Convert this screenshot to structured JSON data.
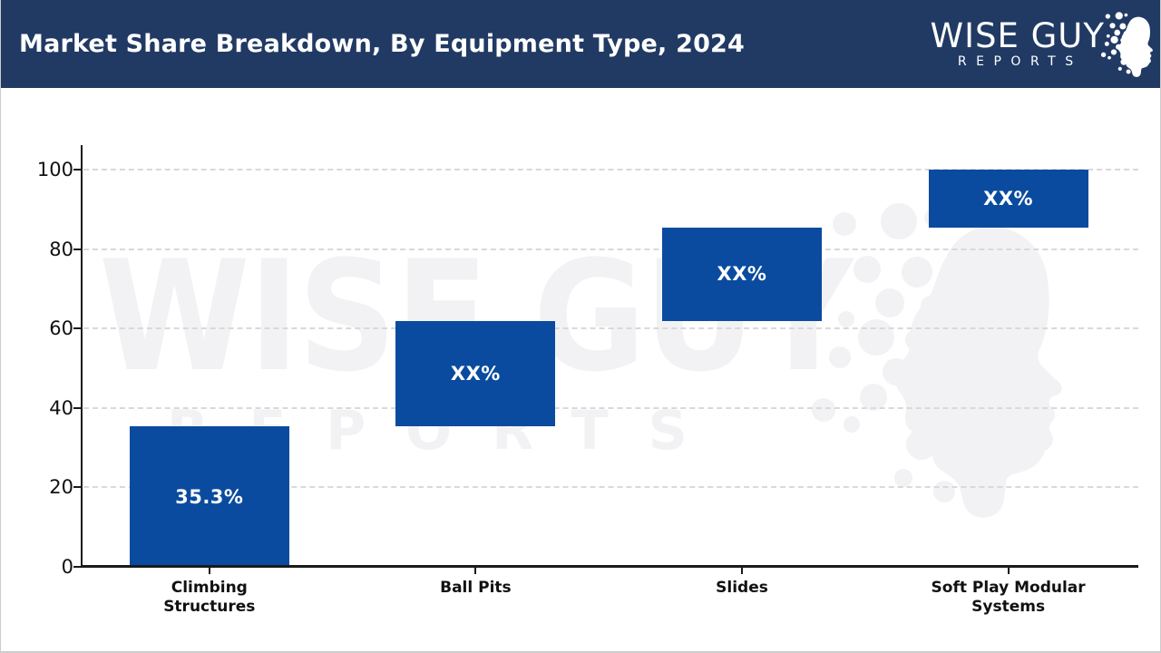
{
  "header": {
    "title": "Market Share Breakdown, By Equipment Type, 2024",
    "logo_primary": "WISE GUY",
    "logo_secondary": "REPORTS"
  },
  "watermark": {
    "primary": "WISE GUY",
    "secondary": "REPORTS"
  },
  "chart_data": {
    "type": "bar",
    "variant": "waterfall",
    "title": "Market Share Breakdown, By Equipment Type, 2024",
    "categories": [
      "Climbing\nStructures",
      "Ball Pits",
      "Slides",
      "Soft Play Modular\nSystems"
    ],
    "segments": [
      {
        "category": "Climbing Structures",
        "start": 0,
        "end": 35.3,
        "label": "35.3%"
      },
      {
        "category": "Ball Pits",
        "start": 35.3,
        "end": 61.8,
        "label": "XX%"
      },
      {
        "category": "Slides",
        "start": 61.8,
        "end": 85.5,
        "label": "XX%"
      },
      {
        "category": "Soft Play Modular Systems",
        "start": 85.5,
        "end": 100,
        "label": "XX%"
      }
    ],
    "yticks": [
      0,
      20,
      40,
      60,
      80,
      100
    ],
    "ylim": [
      0,
      105.5
    ],
    "xlabel": "",
    "ylabel": "",
    "grid": {
      "horizontal": true,
      "style": "dashed"
    },
    "legend": null,
    "colors": {
      "bar": "#0a4b9f",
      "bar_label": "#ffffff",
      "axis": "#1a1a1a",
      "grid": "#d9d9d9",
      "tick_label": "#111111"
    }
  },
  "theme": {
    "header_bg": "#213a64",
    "header_text": "#ffffff",
    "watermark_color": "#f2f2f4",
    "page_bg": "#ffffff",
    "page_border": "#cccccc"
  }
}
